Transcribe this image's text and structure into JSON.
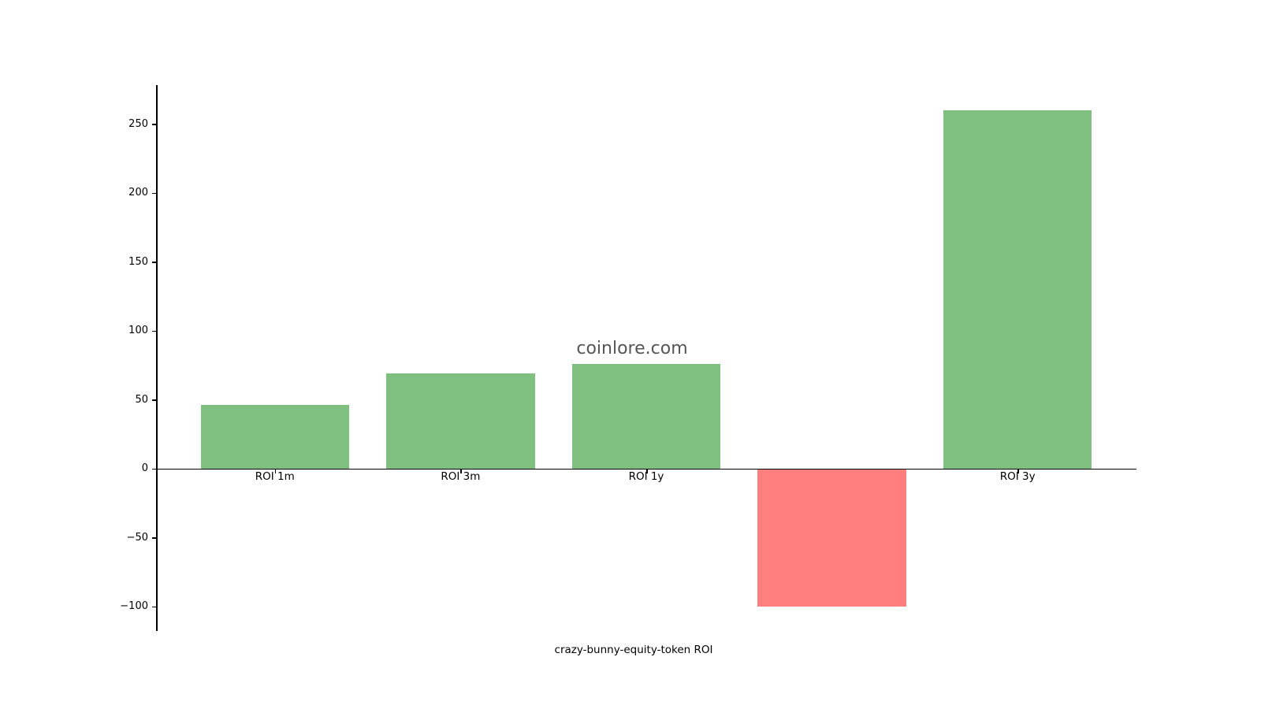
{
  "watermark": "coinlore.com",
  "colors": {
    "positive": "#7fbf7f",
    "negative": "#ff7f7f",
    "axis": "#000000",
    "watermark": "#555555",
    "title": "#000000"
  },
  "chart_data": {
    "type": "bar",
    "title": "crazy-bunny-equity-token ROI",
    "xlabel": "",
    "ylabel": "",
    "categories": [
      "ROI 1m",
      "ROI 3m",
      "ROI 1y",
      "",
      "ROI 3y"
    ],
    "values": [
      46,
      69,
      76,
      -100,
      260
    ],
    "bar_signs": [
      "positive",
      "positive",
      "positive",
      "negative",
      "positive"
    ],
    "yticks": [
      {
        "value": 250,
        "label": "250"
      },
      {
        "value": 200,
        "label": "200"
      },
      {
        "value": 150,
        "label": "150"
      },
      {
        "value": 100,
        "label": "100"
      },
      {
        "value": 50,
        "label": "50"
      },
      {
        "value": 0,
        "label": "0"
      },
      {
        "value": -50,
        "label": "−50"
      },
      {
        "value": -100,
        "label": "−100"
      }
    ],
    "ylim": [
      -118,
      278
    ],
    "grid": false,
    "legend": null
  }
}
